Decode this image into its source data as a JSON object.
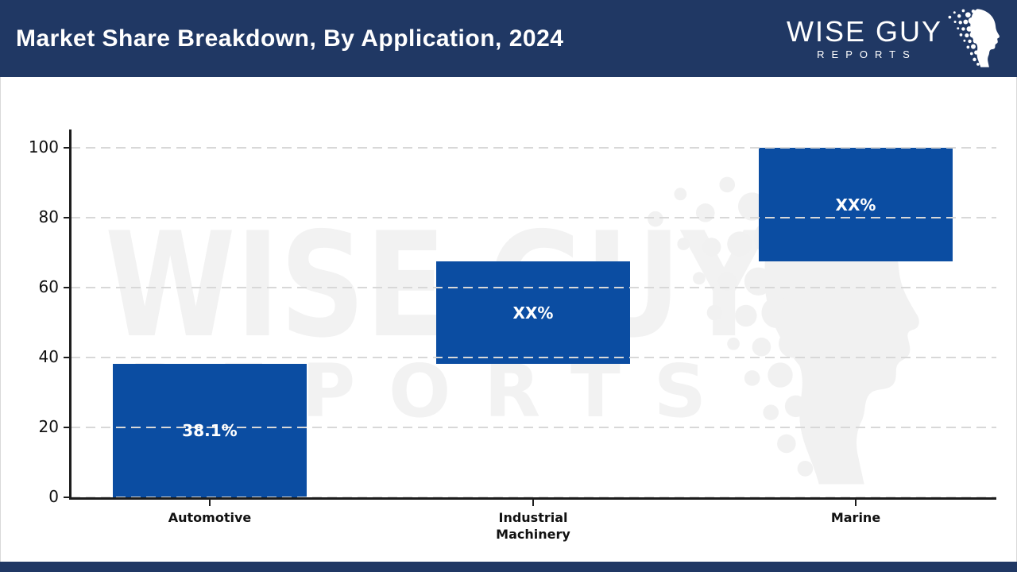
{
  "header": {
    "title": "Market Share Breakdown, By Application, 2024",
    "logo": {
      "wordmark": "WISE GUY",
      "subtext": "REPORTS"
    }
  },
  "watermark": {
    "line1": "WISE GUY",
    "line2": "REPORTS"
  },
  "colors": {
    "header_bg": "#203864",
    "footer_bg": "#203864",
    "bar": "#0b4da2",
    "bar_label": "#ffffff",
    "gridline": "#d8d8d8",
    "axis": "#1c1c1c",
    "tick_text": "#111111",
    "watermark": "#f2f2f2",
    "title_text": "#ffffff"
  },
  "chart_data": {
    "type": "bar",
    "subtype": "waterfall",
    "title": "Market Share Breakdown, By Application, 2024",
    "categories": [
      "Automotive",
      "Industrial\nMachinery",
      "Marine"
    ],
    "segments": [
      {
        "category": "Automotive",
        "start": 0,
        "end": 38.1,
        "value": 38.1,
        "value_label": "38.1%"
      },
      {
        "category": "Industrial\nMachinery",
        "start": 38.1,
        "end": 67.4,
        "value": 29.3,
        "value_label": "XX%"
      },
      {
        "category": "Marine",
        "start": 67.4,
        "end": 100,
        "value": 32.6,
        "value_label": "XX%"
      }
    ],
    "yticks": [
      0,
      20,
      40,
      60,
      80,
      100
    ],
    "ylim": [
      0,
      100
    ],
    "xlabel": "",
    "ylabel": "",
    "grid": "horizontal-dashed",
    "legend": "none"
  }
}
